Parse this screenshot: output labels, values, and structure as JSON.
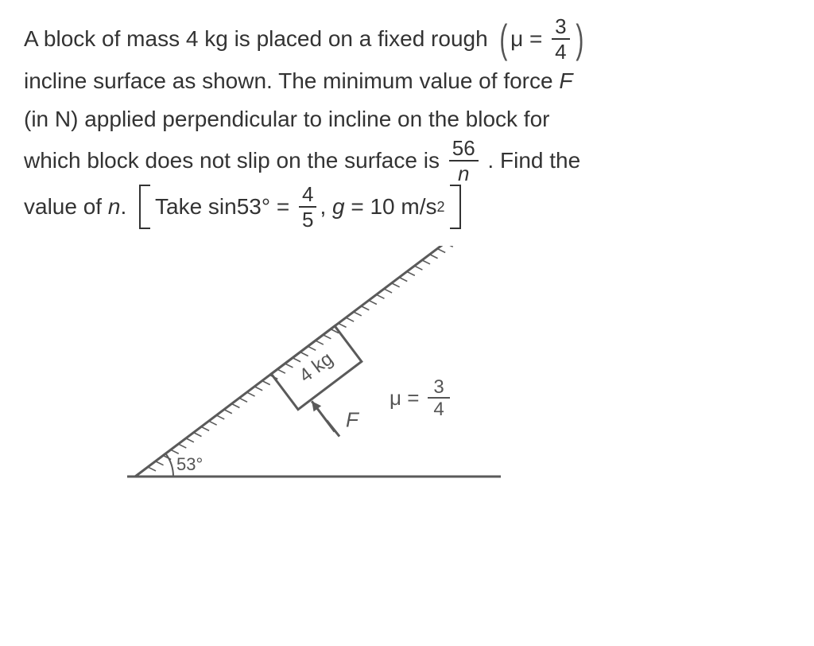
{
  "text": {
    "l1a": "A block of mass 4 kg is placed on a fixed rough ",
    "mu": "μ",
    "eq": " = ",
    "three": "3",
    "four": "4",
    "l2": "incline surface as shown. The minimum value of force ",
    "F": "F",
    "l3": "(in N) applied perpendicular to incline on the block for",
    "l4a": "which block does not slip on the surface is ",
    "fiftysix": "56",
    "n": "n",
    "l4b": " . Find the",
    "l5a": "value of ",
    "l5n": "n",
    "l5dot": ". ",
    "take": "Take sin53° = ",
    "f4": "4",
    "f5": "5",
    "gpart": ", ",
    "g": "g",
    "gval": " = 10 m/s",
    "sq": "2"
  },
  "diagram": {
    "F_label": "F",
    "mass_label": "4 kg",
    "mu_label": "μ = ",
    "mu_num": "3",
    "mu_den": "4",
    "angle_label": "53°",
    "colors": {
      "stroke": "#5a5a5a",
      "text": "#555555"
    },
    "angle_deg": 37,
    "hatch_spacing": 12,
    "hatch_length": 10
  }
}
